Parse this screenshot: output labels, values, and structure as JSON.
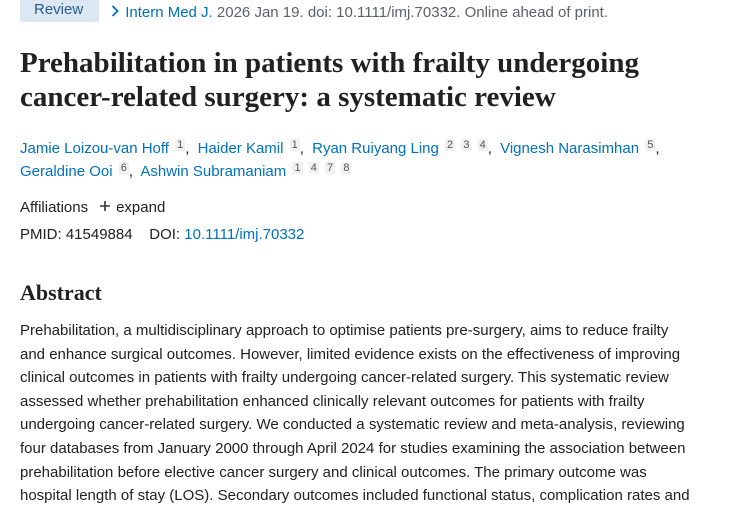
{
  "citation": {
    "badge": "Review",
    "journal": "Intern Med J.",
    "details": "2026 Jan 19. doi: 10.1111/imj.70332. Online ahead of print."
  },
  "title": [
    "Prehabilitation in patients with frailty undergoing",
    "cancer-related surgery: a systematic review"
  ],
  "author_separator": ",",
  "authors": [
    {
      "name": "Jamie Loizou-van Hoff",
      "affiliations": [
        "1"
      ]
    },
    {
      "name": "Haider Kamil",
      "affiliations": [
        "1"
      ]
    },
    {
      "name": "Ryan Ruiyang Ling",
      "affiliations": [
        "2",
        "3",
        "4"
      ]
    },
    {
      "name": "Vignesh Narasimhan",
      "affiliations": [
        "5"
      ]
    },
    {
      "name": "Geraldine Ooi",
      "affiliations": [
        "6"
      ]
    },
    {
      "name": "Ashwin Subramaniam",
      "affiliations": [
        "1",
        "4",
        "7",
        "8"
      ]
    }
  ],
  "affiliations": {
    "label": "Affiliations",
    "expand": "expand"
  },
  "ids": {
    "pmid_label": "PMID:",
    "pmid": "41549884",
    "doi_label": "DOI:",
    "doi": "10.1111/imj.70332"
  },
  "abstract": {
    "heading": "Abstract",
    "lines": [
      "Prehabilitation, a multidisciplinary approach to optimise patients pre-surgery, aims to reduce frailty",
      "and enhance surgical outcomes. However, limited evidence exists on the effectiveness of improving",
      "clinical outcomes in patients with frailty undergoing cancer-related surgery. This systematic review",
      "assessed whether prehabilitation enhanced clinically relevant outcomes for patients with frailty",
      "undergoing cancer-related surgery. We conducted a systematic review and meta-analysis, reviewing",
      "four databases from January 2000 through April 2024 for studies examining the association between",
      "prehabilitation before elective cancer surgery and clinical outcomes. The primary outcome was",
      "hospital length of stay (LOS). Secondary outcomes included functional status, complication rates and"
    ]
  }
}
